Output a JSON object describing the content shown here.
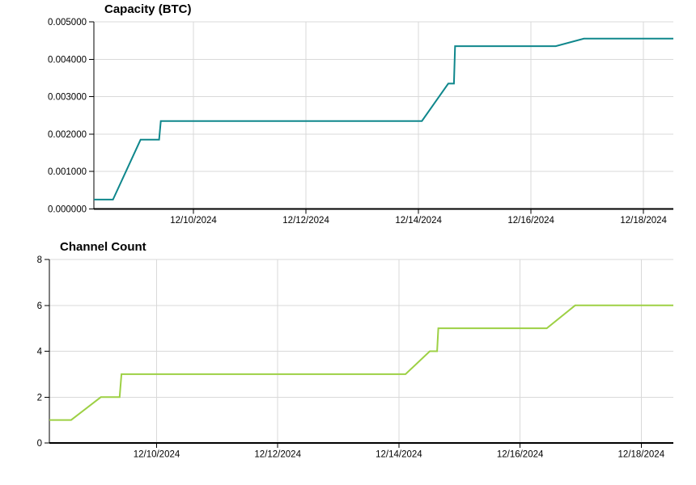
{
  "page": {
    "background": "#ffffff",
    "description": "Two stacked time-series line charts for a Lightning node: capacity in BTC and channel count"
  },
  "chart_data": [
    {
      "type": "line",
      "title": "Capacity (BTC)",
      "series_name": "capacity-btc",
      "series_color": "#0f878c",
      "grid": true,
      "legend": "none",
      "x_unit": "days after 2024-12-08 00:00",
      "xlim": [
        0.23,
        10.53
      ],
      "ylim": [
        0,
        0.005
      ],
      "x": [
        0.23,
        0.57,
        1.06,
        1.39,
        1.42,
        6.06,
        6.53,
        6.63,
        6.65,
        8.44,
        8.94,
        10.53
      ],
      "y": [
        0.00025,
        0.00025,
        0.00185,
        0.00185,
        0.00235,
        0.00235,
        0.00335,
        0.00335,
        0.00435,
        0.00435,
        0.00455,
        0.00455
      ],
      "x_ticks": [
        {
          "value": 2,
          "label": "12/10/2024"
        },
        {
          "value": 4,
          "label": "12/12/2024"
        },
        {
          "value": 6,
          "label": "12/14/2024"
        },
        {
          "value": 8,
          "label": "12/16/2024"
        },
        {
          "value": 10,
          "label": "12/18/2024"
        }
      ],
      "y_ticks": [
        {
          "value": 0,
          "label": "0.000000"
        },
        {
          "value": 0.001,
          "label": "0.001000"
        },
        {
          "value": 0.002,
          "label": "0.002000"
        },
        {
          "value": 0.003,
          "label": "0.003000"
        },
        {
          "value": 0.004,
          "label": "0.004000"
        },
        {
          "value": 0.005,
          "label": "0.005000"
        }
      ]
    },
    {
      "type": "line",
      "title": "Channel Count",
      "series_name": "channel-count",
      "series_color": "#9dd044",
      "grid": true,
      "legend": "none",
      "x_unit": "days after 2024-12-08 00:00",
      "xlim": [
        0.23,
        10.53
      ],
      "ylim": [
        0,
        8
      ],
      "x": [
        0.23,
        0.59,
        1.08,
        1.39,
        1.42,
        6.11,
        6.51,
        6.63,
        6.65,
        8.44,
        8.91,
        10.53
      ],
      "y": [
        1,
        1,
        2,
        2,
        3,
        3,
        4,
        4,
        5,
        5,
        6,
        6
      ],
      "x_ticks": [
        {
          "value": 2,
          "label": "12/10/2024"
        },
        {
          "value": 4,
          "label": "12/12/2024"
        },
        {
          "value": 6,
          "label": "12/14/2024"
        },
        {
          "value": 8,
          "label": "12/16/2024"
        },
        {
          "value": 10,
          "label": "12/18/2024"
        }
      ],
      "y_ticks": [
        {
          "value": 0,
          "label": "0"
        },
        {
          "value": 2,
          "label": "2"
        },
        {
          "value": 4,
          "label": "4"
        },
        {
          "value": 6,
          "label": "6"
        },
        {
          "value": 8,
          "label": "8"
        }
      ]
    }
  ],
  "style": {
    "grid_color": "#d9d9d9",
    "axis_color": "#000000",
    "tick_color": "#000000",
    "label_color": "#000000"
  }
}
